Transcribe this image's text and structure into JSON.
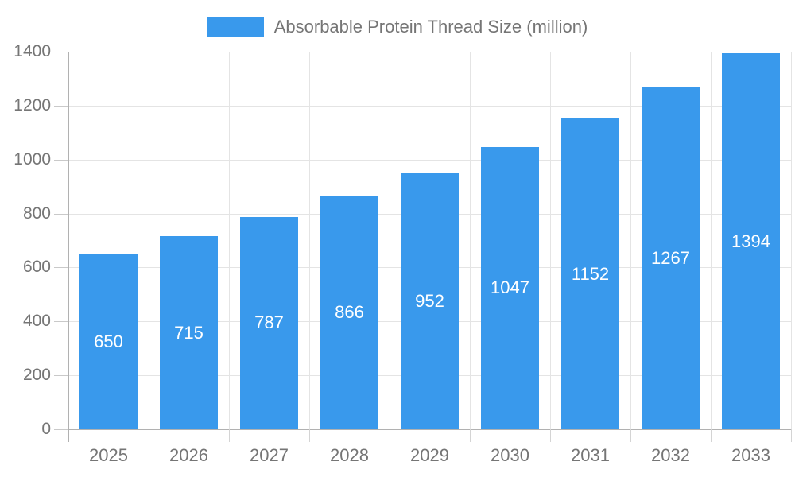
{
  "chart_data": {
    "type": "bar",
    "title": "Absorbable Protein Thread Size (million)",
    "categories": [
      "2025",
      "2026",
      "2027",
      "2028",
      "2029",
      "2030",
      "2031",
      "2032",
      "2033"
    ],
    "values": [
      650,
      715,
      787,
      866,
      952,
      1047,
      1152,
      1267,
      1394
    ],
    "xlabel": "",
    "ylabel": "",
    "ylim": [
      0,
      1400
    ],
    "yticks": [
      0,
      200,
      400,
      600,
      800,
      1000,
      1200,
      1400
    ],
    "grid": true,
    "legend_position": "top-center",
    "colors": {
      "bar": "#3999EC",
      "value_label": "#FFFFFF",
      "axis_text": "#757575",
      "axis_line": "#B1B1B1",
      "grid_line": "#E4E4E4"
    }
  }
}
